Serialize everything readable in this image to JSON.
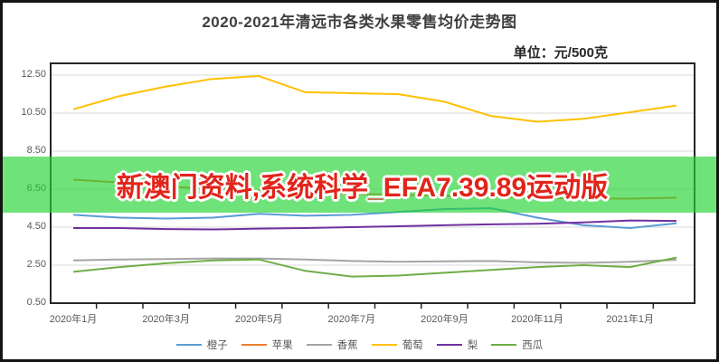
{
  "banner": {
    "text": "新澳门资料,系统科学_EFA7.39.89运动版",
    "bg_color": "#4ed232",
    "text_color": "#e2241b"
  },
  "chart_data": {
    "type": "line",
    "title": "2020-2021年清远市各类水果零售均价走势图",
    "unit_label": "单位：元/500克",
    "x": [
      "2020年1月",
      "2020年2月",
      "2020年3月",
      "2020年4月",
      "2020年5月",
      "2020年6月",
      "2020年7月",
      "2020年8月",
      "2020年9月",
      "2020年10月",
      "2020年11月",
      "2020年12月",
      "2021年1月",
      "2021年2月"
    ],
    "x_axis_labels": [
      "2020年1月",
      "2020年3月",
      "2020年5月",
      "2020年7月",
      "2020年9月",
      "2020年11月",
      "2021年1月"
    ],
    "y_tick_labels": [
      "12.50",
      "10.50",
      "8.50",
      "6.50",
      "4.50",
      "2.50",
      "0.50"
    ],
    "y_tick_values": [
      12.5,
      10.5,
      8.5,
      6.5,
      4.5,
      2.5,
      0.5
    ],
    "ylim": [
      0.5,
      12.5
    ],
    "grid": "horizontal",
    "legend_position": "bottom",
    "colors": {
      "grid": "#d9d9d9",
      "axis_border": "#262626",
      "tick_text": "#595959"
    },
    "series": [
      {
        "name": "橙子",
        "color": "#5B9BD5",
        "values": [
          5.15,
          5.0,
          4.95,
          5.0,
          5.2,
          5.1,
          5.15,
          5.3,
          5.45,
          5.5,
          5.0,
          4.6,
          4.45,
          4.7
        ]
      },
      {
        "name": "苹果",
        "color": "#ED7D31",
        "values": [
          7.0,
          6.85,
          6.65,
          6.5,
          6.45,
          6.35,
          6.25,
          6.2,
          6.15,
          6.1,
          6.05,
          6.0,
          6.0,
          6.05
        ]
      },
      {
        "name": "香蕉",
        "color": "#A5A5A5",
        "values": [
          2.75,
          2.8,
          2.82,
          2.85,
          2.85,
          2.8,
          2.72,
          2.68,
          2.7,
          2.72,
          2.65,
          2.62,
          2.68,
          2.78
        ]
      },
      {
        "name": "葡萄",
        "color": "#FFC000",
        "values": [
          10.7,
          11.4,
          11.9,
          12.3,
          12.45,
          11.6,
          11.55,
          11.5,
          11.1,
          10.35,
          10.05,
          10.2,
          10.55,
          10.9
        ]
      },
      {
        "name": "梨",
        "color": "#7030A0",
        "values": [
          4.45,
          4.45,
          4.4,
          4.38,
          4.42,
          4.45,
          4.5,
          4.55,
          4.6,
          4.65,
          4.68,
          4.75,
          4.85,
          4.83
        ]
      },
      {
        "name": "西瓜",
        "color": "#70AD47",
        "values": [
          2.15,
          2.4,
          2.6,
          2.75,
          2.8,
          2.2,
          1.9,
          1.95,
          2.1,
          2.25,
          2.4,
          2.5,
          2.4,
          2.9
        ]
      }
    ]
  }
}
